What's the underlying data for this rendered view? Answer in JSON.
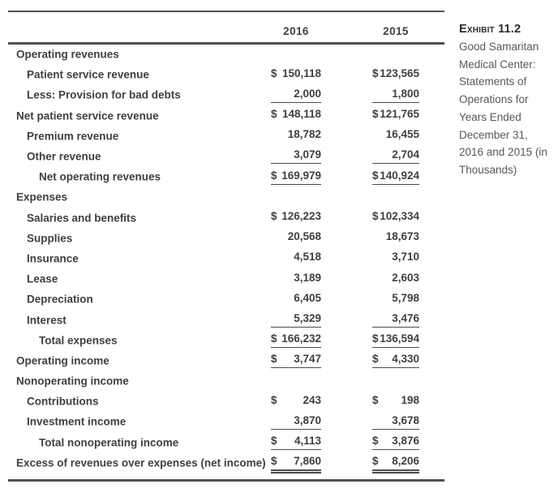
{
  "sidebar": {
    "exhibit_label": "Exhibit 11.2",
    "caption_lines": [
      "Good Samaritan",
      "Medical Center:",
      "Statements of",
      "Operations for",
      "Years Ended",
      "December 31,",
      "2016 and 2015 (in",
      "Thousands)"
    ]
  },
  "table": {
    "col_headers": [
      "2016",
      "2015"
    ],
    "rows": [
      {
        "label": "Operating revenues",
        "indent": 0,
        "u": "none"
      },
      {
        "label": "Patient service revenue",
        "indent": 1,
        "d1": "$",
        "v1": "150,118",
        "d2": "$",
        "v2": "123,565",
        "u": "none"
      },
      {
        "label": "Less: Provision for bad debts",
        "indent": 1,
        "v1": "2,000",
        "v2": "1,800",
        "u": "single"
      },
      {
        "label": "Net patient service revenue",
        "indent": 0,
        "d1": "$",
        "v1": "148,118",
        "d2": "$",
        "v2": "121,765",
        "u": "none"
      },
      {
        "label": "Premium revenue",
        "indent": 1,
        "v1": "18,782",
        "v2": "16,455",
        "u": "none"
      },
      {
        "label": "Other revenue",
        "indent": 1,
        "v1": "3,079",
        "v2": "2,704",
        "u": "single"
      },
      {
        "label": "Net operating revenues",
        "indent": 2,
        "d1": "$",
        "v1": "169,979",
        "d2": "$",
        "v2": "140,924",
        "u": "single"
      },
      {
        "label": "Expenses",
        "indent": 0,
        "u": "none"
      },
      {
        "label": "Salaries and benefits",
        "indent": 1,
        "d1": "$",
        "v1": "126,223",
        "d2": "$",
        "v2": "102,334",
        "u": "none"
      },
      {
        "label": "Supplies",
        "indent": 1,
        "v1": "20,568",
        "v2": "18,673",
        "u": "none"
      },
      {
        "label": "Insurance",
        "indent": 1,
        "v1": "4,518",
        "v2": "3,710",
        "u": "none"
      },
      {
        "label": "Lease",
        "indent": 1,
        "v1": "3,189",
        "v2": "2,603",
        "u": "none"
      },
      {
        "label": "Depreciation",
        "indent": 1,
        "v1": "6,405",
        "v2": "5,798",
        "u": "none"
      },
      {
        "label": "Interest",
        "indent": 1,
        "v1": "5,329",
        "v2": "3,476",
        "u": "single"
      },
      {
        "label": "Total expenses",
        "indent": 2,
        "d1": "$",
        "v1": "166,232",
        "d2": "$",
        "v2": "136,594",
        "u": "single"
      },
      {
        "label": "Operating income",
        "indent": 0,
        "d1": "$",
        "v1": "3,747",
        "d2": "$",
        "v2": "4,330",
        "u": "single"
      },
      {
        "label": "Nonoperating income",
        "indent": 0,
        "u": "none"
      },
      {
        "label": "Contributions",
        "indent": 1,
        "d1": "$",
        "v1": "243",
        "d2": "$",
        "v2": "198",
        "u": "none"
      },
      {
        "label": "Investment income",
        "indent": 1,
        "v1": "3,870",
        "v2": "3,678",
        "u": "single"
      },
      {
        "label": "Total nonoperating income",
        "indent": 2,
        "d1": "$",
        "v1": "4,113",
        "d2": "$",
        "v2": "3,876",
        "u": "single"
      },
      {
        "label": "Excess of revenues over expenses (net income)",
        "indent": 0,
        "d1": "$",
        "v1": "7,860",
        "d2": "$",
        "v2": "8,206",
        "u": "double"
      }
    ]
  },
  "colors": {
    "text": "#3e4044",
    "rule": "#505156",
    "caption_heading": "#2d2c2a",
    "caption_text": "#57585c",
    "background": "#ffffff"
  }
}
